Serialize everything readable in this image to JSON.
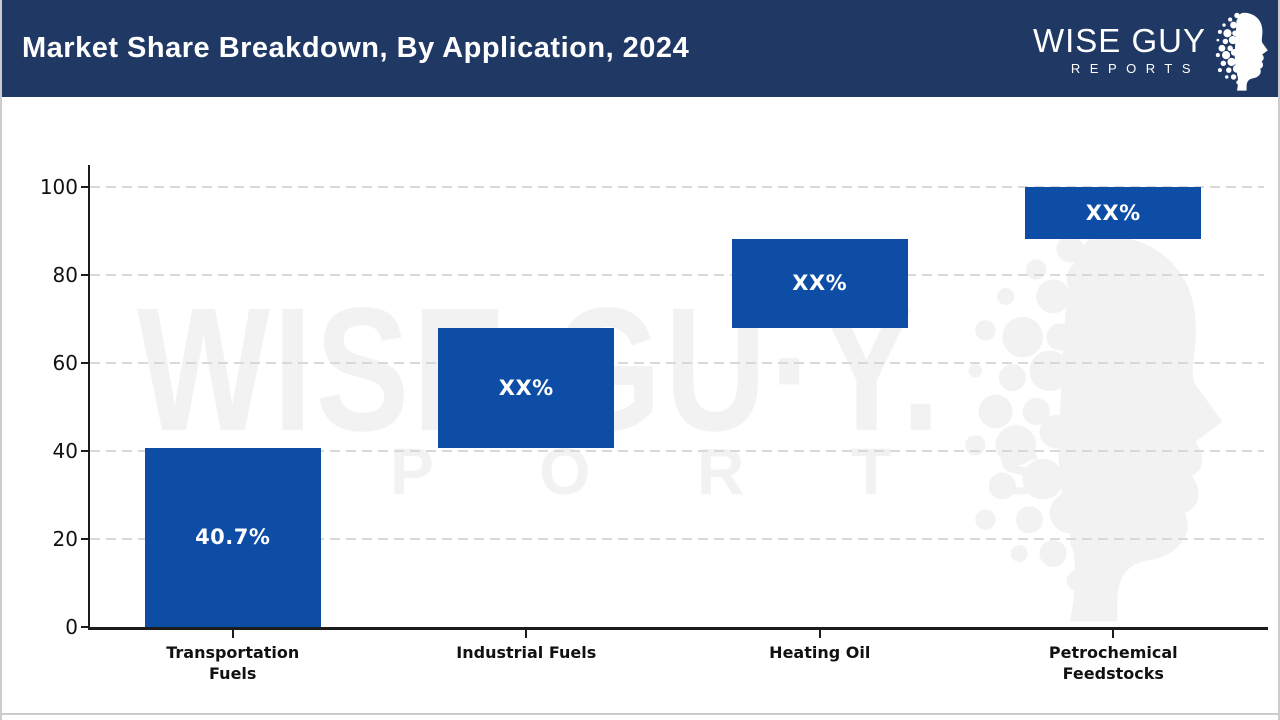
{
  "page": {
    "background": "#ffffff",
    "border_color": "#cccccc"
  },
  "header": {
    "bg_color": "#1f3864",
    "title": "Market Share Breakdown, By Application, 2024",
    "logo": {
      "wordmark": "WISE GUY",
      "subtext": "REPORTS"
    }
  },
  "watermark": {
    "line1": "WISE GU·Y.",
    "line2": "P O R T S"
  },
  "chart_data": {
    "type": "bar",
    "variant": "waterfall",
    "title": "Market Share Breakdown, By Application, 2024",
    "categories": [
      "Transportation Fuels",
      "Industrial Fuels",
      "Heating Oil",
      "Petrochemical Feedstocks"
    ],
    "segments": [
      {
        "category": "Transportation Fuels",
        "label": "40.7%",
        "start": 0,
        "end": 40.7
      },
      {
        "category": "Industrial Fuels",
        "label": "XX%",
        "start": 40.7,
        "end": 68.0
      },
      {
        "category": "Heating Oil",
        "label": "XX%",
        "start": 68.0,
        "end": 88.2
      },
      {
        "category": "Petrochemical Feedstocks",
        "label": "XX%",
        "start": 88.2,
        "end": 100.0
      }
    ],
    "xlabel": "",
    "ylabel": "",
    "ylim": [
      0,
      100
    ],
    "y_ticks": [
      0,
      20,
      40,
      60,
      80,
      100
    ],
    "grid": "horizontal-dashed",
    "legend": "none",
    "bar_color": "#0d4da6",
    "bar_label_color": "#ffffff",
    "axis_color": "#1c1c1c",
    "grid_color": "#d9d9d9"
  }
}
